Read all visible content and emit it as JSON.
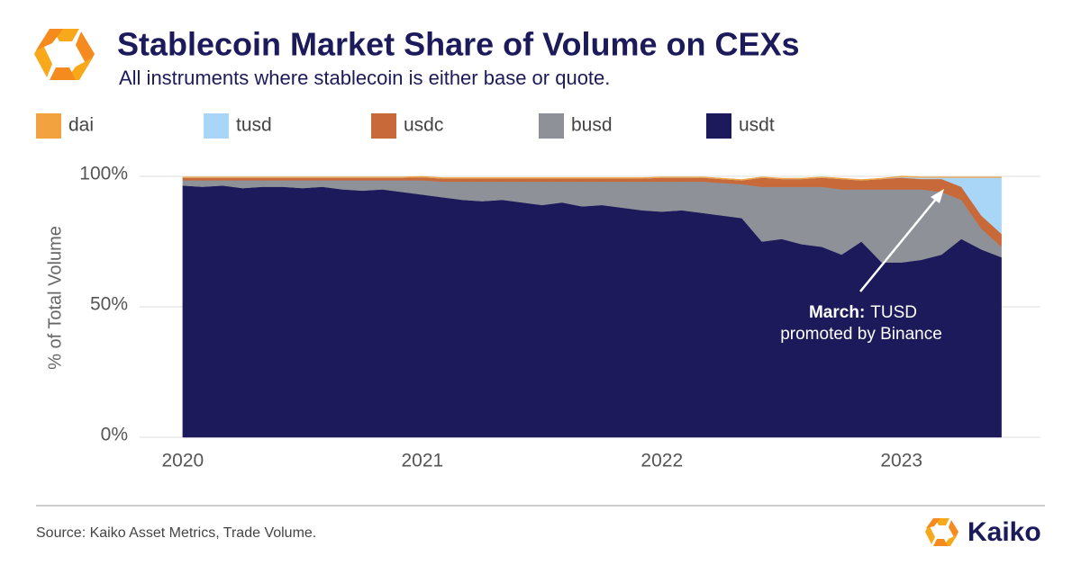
{
  "chart_data": {
    "type": "stacked-area",
    "title": "Stablecoin Market Share of Volume on CEXs",
    "subtitle": "All instruments where stablecoin is either base or quote.",
    "y_label": "% of Total Volume",
    "source": "Source: Kaiko Asset Metrics, Trade Volume.",
    "brand": "Kaiko",
    "annotation": {
      "heading": "March:",
      "lines": [
        "TUSD",
        "promoted by Binance"
      ]
    },
    "x": [
      2020,
      2020.083,
      2020.167,
      2020.25,
      2020.333,
      2020.417,
      2020.5,
      2020.583,
      2020.667,
      2020.75,
      2020.833,
      2020.917,
      2021,
      2021.083,
      2021.167,
      2021.25,
      2021.333,
      2021.417,
      2021.5,
      2021.583,
      2021.667,
      2021.75,
      2021.833,
      2021.917,
      2022,
      2022.083,
      2022.167,
      2022.25,
      2022.333,
      2022.417,
      2022.5,
      2022.583,
      2022.667,
      2022.75,
      2022.833,
      2022.917,
      2023,
      2023.083,
      2023.167,
      2023.25,
      2023.333,
      2023.417
    ],
    "series": [
      {
        "name": "dai",
        "color": "#f2a33f",
        "values": [
          0.3,
          0.3,
          0.3,
          0.3,
          0.3,
          0.3,
          0.3,
          0.3,
          0.3,
          0.3,
          0.3,
          0.3,
          0.3,
          0.3,
          0.3,
          0.3,
          0.3,
          0.3,
          0.3,
          0.3,
          0.3,
          0.3,
          0.3,
          0.3,
          0.3,
          0.3,
          0.3,
          0.3,
          0.3,
          0.3,
          0.3,
          0.3,
          0.3,
          0.3,
          0.3,
          0.3,
          0.3,
          0.3,
          0.3,
          0.3,
          0.3,
          0.3
        ]
      },
      {
        "name": "tusd",
        "color": "#a9d5f7",
        "values": [
          0,
          0,
          0,
          0,
          0,
          0,
          0,
          0,
          0,
          0,
          0,
          0,
          0,
          0,
          0,
          0,
          0,
          0,
          0,
          0,
          0,
          0,
          0,
          0,
          0,
          0,
          0,
          0,
          0,
          0,
          0,
          0,
          0,
          0,
          0,
          0,
          0.3,
          0.5,
          0.5,
          3.5,
          14.5,
          21.5
        ]
      },
      {
        "name": "usdc",
        "color": "#c8693a",
        "values": [
          1,
          1,
          1,
          1,
          1,
          1,
          1,
          1,
          1,
          1,
          1,
          1,
          1.2,
          1.2,
          1.2,
          1.2,
          1.2,
          1.2,
          1.2,
          1.2,
          1.2,
          1.2,
          1.2,
          1.2,
          1.5,
          1.5,
          1.5,
          1.5,
          1.5,
          3.5,
          3,
          3,
          3.5,
          4,
          3.5,
          4,
          4.5,
          4,
          5,
          5,
          5,
          5
        ]
      },
      {
        "name": "busd",
        "color": "#8e9298",
        "values": [
          2,
          2.5,
          2,
          3,
          2.5,
          2.5,
          3,
          2.5,
          3.5,
          4,
          3.5,
          4.5,
          5.5,
          6,
          7,
          7.5,
          7,
          8,
          9,
          8,
          9.5,
          9,
          10,
          11,
          11.5,
          11,
          12,
          12.5,
          13,
          21,
          20,
          22,
          23,
          25,
          20,
          28,
          28,
          27,
          24,
          15,
          8,
          4
        ]
      },
      {
        "name": "usdt",
        "color": "#1c1a5a",
        "values": [
          96.5,
          96,
          96.5,
          95.5,
          96,
          96,
          95.5,
          96,
          95,
          94.5,
          95,
          94,
          93,
          92,
          91,
          90.5,
          91,
          90,
          89,
          90,
          88.5,
          89,
          88,
          87,
          86.5,
          87,
          86,
          85,
          84,
          75,
          76,
          74,
          73,
          70,
          75,
          67,
          67,
          68,
          70,
          76,
          72,
          69
        ]
      }
    ],
    "xlim": [
      2019.82,
      2023.58
    ],
    "xticks": [
      2020,
      2021,
      2022,
      2023
    ],
    "ylim": [
      0,
      100
    ],
    "yticks": [
      {
        "value": 0,
        "label": "0%"
      },
      {
        "value": 50,
        "label": "50%"
      },
      {
        "value": 100,
        "label": "100%"
      }
    ],
    "grid": true
  }
}
